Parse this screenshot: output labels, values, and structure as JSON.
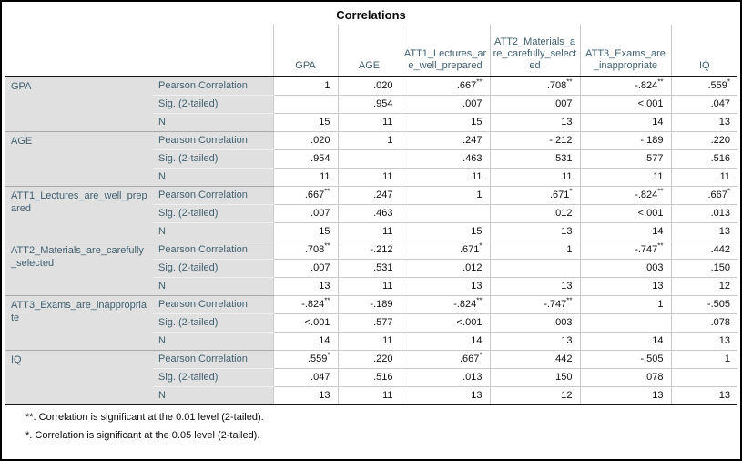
{
  "table": {
    "title": "Correlations",
    "columns": [
      "GPA",
      "AGE",
      "ATT1_Lectures_are_well_prepared",
      "ATT2_Materials_are_carefully_selected",
      "ATT3_Exams_are_inappropriate",
      "IQ"
    ],
    "stat_labels": [
      "Pearson Correlation",
      "Sig. (2-tailed)",
      "N"
    ],
    "groups": [
      {
        "label": "GPA",
        "rows": [
          {
            "stat": "Pearson Correlation",
            "values": [
              "1",
              ".020",
              ".667**",
              ".708**",
              "-.824**",
              ".559*"
            ]
          },
          {
            "stat": "Sig. (2-tailed)",
            "values": [
              "",
              ".954",
              ".007",
              ".007",
              "<.001",
              ".047"
            ]
          },
          {
            "stat": "N",
            "values": [
              "15",
              "11",
              "15",
              "13",
              "14",
              "13"
            ]
          }
        ]
      },
      {
        "label": "AGE",
        "rows": [
          {
            "stat": "Pearson Correlation",
            "values": [
              ".020",
              "1",
              ".247",
              "-.212",
              "-.189",
              ".220"
            ]
          },
          {
            "stat": "Sig. (2-tailed)",
            "values": [
              ".954",
              "",
              ".463",
              ".531",
              ".577",
              ".516"
            ]
          },
          {
            "stat": "N",
            "values": [
              "11",
              "11",
              "11",
              "11",
              "11",
              "11"
            ]
          }
        ]
      },
      {
        "label": "ATT1_Lectures_are_well_prepared",
        "rows": [
          {
            "stat": "Pearson Correlation",
            "values": [
              ".667**",
              ".247",
              "1",
              ".671*",
              "-.824**",
              ".667*"
            ]
          },
          {
            "stat": "Sig. (2-tailed)",
            "values": [
              ".007",
              ".463",
              "",
              ".012",
              "<.001",
              ".013"
            ]
          },
          {
            "stat": "N",
            "values": [
              "15",
              "11",
              "15",
              "13",
              "14",
              "13"
            ]
          }
        ]
      },
      {
        "label": "ATT2_Materials_are_carefully_selected",
        "rows": [
          {
            "stat": "Pearson Correlation",
            "values": [
              ".708**",
              "-.212",
              ".671*",
              "1",
              "-.747**",
              ".442"
            ]
          },
          {
            "stat": "Sig. (2-tailed)",
            "values": [
              ".007",
              ".531",
              ".012",
              "",
              ".003",
              ".150"
            ]
          },
          {
            "stat": "N",
            "values": [
              "13",
              "11",
              "13",
              "13",
              "13",
              "12"
            ]
          }
        ]
      },
      {
        "label": "ATT3_Exams_are_inappropriate",
        "rows": [
          {
            "stat": "Pearson Correlation",
            "values": [
              "-.824**",
              "-.189",
              "-.824**",
              "-.747**",
              "1",
              "-.505"
            ]
          },
          {
            "stat": "Sig. (2-tailed)",
            "values": [
              "<.001",
              ".577",
              "<.001",
              ".003",
              "",
              ".078"
            ]
          },
          {
            "stat": "N",
            "values": [
              "14",
              "11",
              "14",
              "13",
              "14",
              "13"
            ]
          }
        ]
      },
      {
        "label": "IQ",
        "rows": [
          {
            "stat": "Pearson Correlation",
            "values": [
              ".559*",
              ".220",
              ".667*",
              ".442",
              "-.505",
              "1"
            ]
          },
          {
            "stat": "Sig. (2-tailed)",
            "values": [
              ".047",
              ".516",
              ".013",
              ".150",
              ".078",
              ""
            ]
          },
          {
            "stat": "N",
            "values": [
              "13",
              "11",
              "13",
              "12",
              "13",
              "13"
            ]
          }
        ]
      }
    ],
    "footnotes": [
      "**. Correlation is significant at the 0.01 level (2-tailed).",
      "*. Correlation is significant at the 0.05 level (2-tailed)."
    ]
  },
  "colors": {
    "label_background": "#e0e0e0",
    "label_text": "#41606f",
    "grid_line": "#c9c9c9",
    "heavy_line": "#161616",
    "value_text": "#0f0f0f"
  }
}
